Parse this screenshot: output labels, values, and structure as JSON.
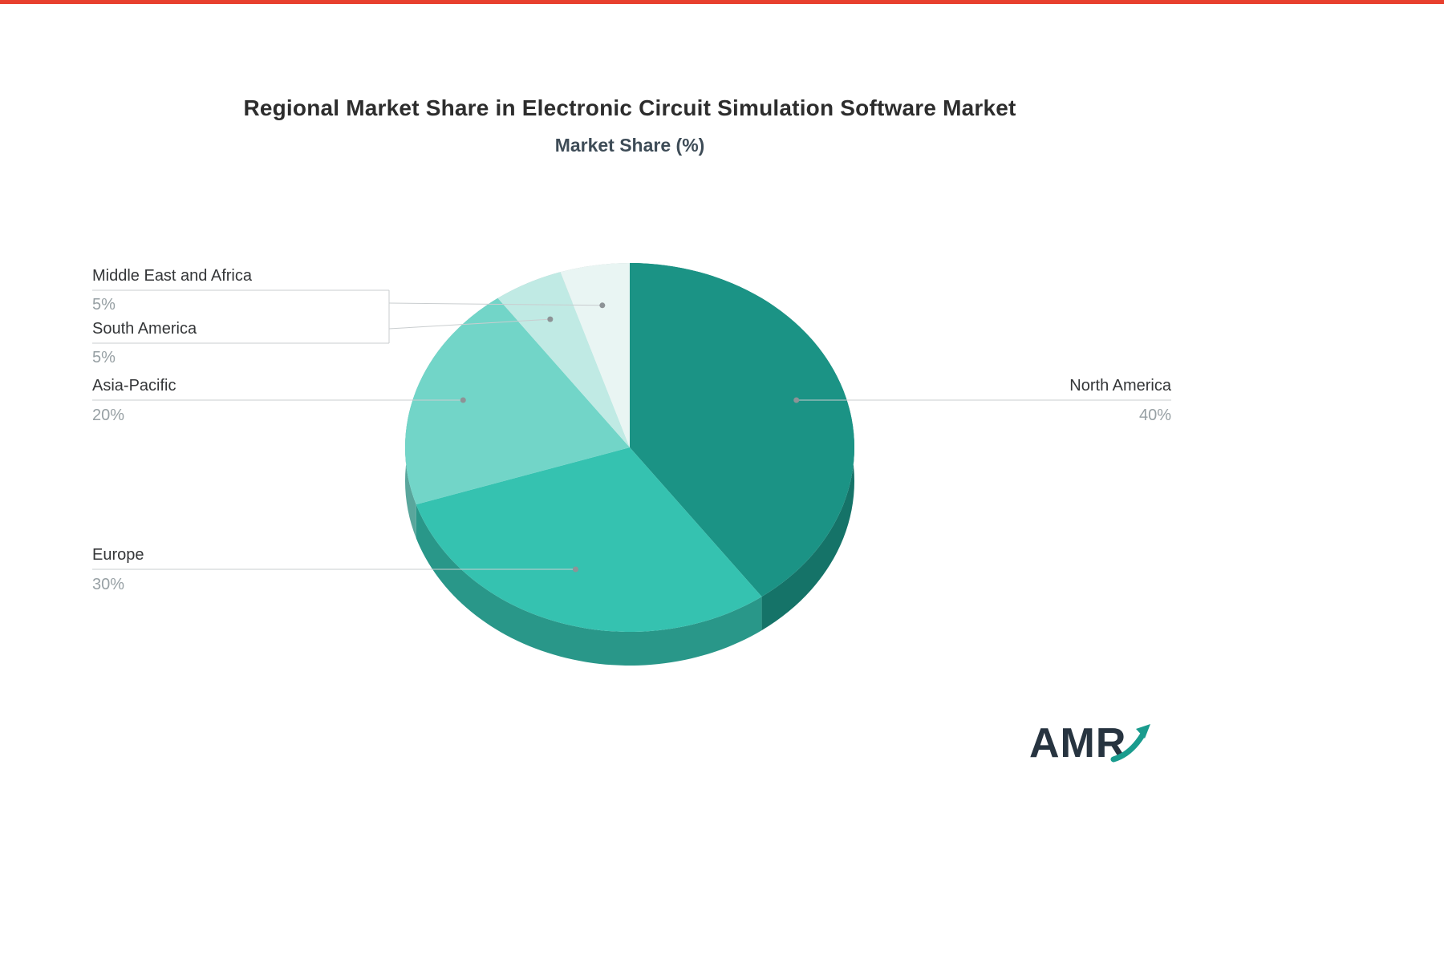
{
  "page": {
    "background": "#ffffff",
    "top_bar_color": "#e8402e"
  },
  "title": "Regional Market Share in Electronic Circuit Simulation Software Market",
  "subtitle": "Market Share (%)",
  "logo": {
    "text": "AMR",
    "arrow_color": "#1a9c8e",
    "text_color": "#273440"
  },
  "chart_data": {
    "type": "pie",
    "title": "Regional Market Share in Electronic Circuit Simulation Software Market",
    "value_axis_label": "Market Share (%)",
    "unit": "%",
    "categories": [
      "North America",
      "Europe",
      "Asia-Pacific",
      "South America",
      "Middle East and Africa"
    ],
    "values": [
      40,
      30,
      20,
      5,
      5
    ],
    "value_labels": [
      "40%",
      "30%",
      "20%",
      "5%",
      "5%"
    ],
    "colors": [
      "#1b9385",
      "#35c2b0",
      "#72d5c8",
      "#c0eae4",
      "#e9f5f3"
    ],
    "start_angle": "top",
    "direction": "clockwise",
    "style": "3d-pie",
    "legend_position": "callout-labels"
  },
  "callouts": [
    {
      "label": "North America",
      "value": "40%"
    },
    {
      "label": "Europe",
      "value": "30%"
    },
    {
      "label": "Asia-Pacific",
      "value": "20%"
    },
    {
      "label": "South America",
      "value": "5%"
    },
    {
      "label": "Middle East and Africa",
      "value": "5%"
    }
  ]
}
